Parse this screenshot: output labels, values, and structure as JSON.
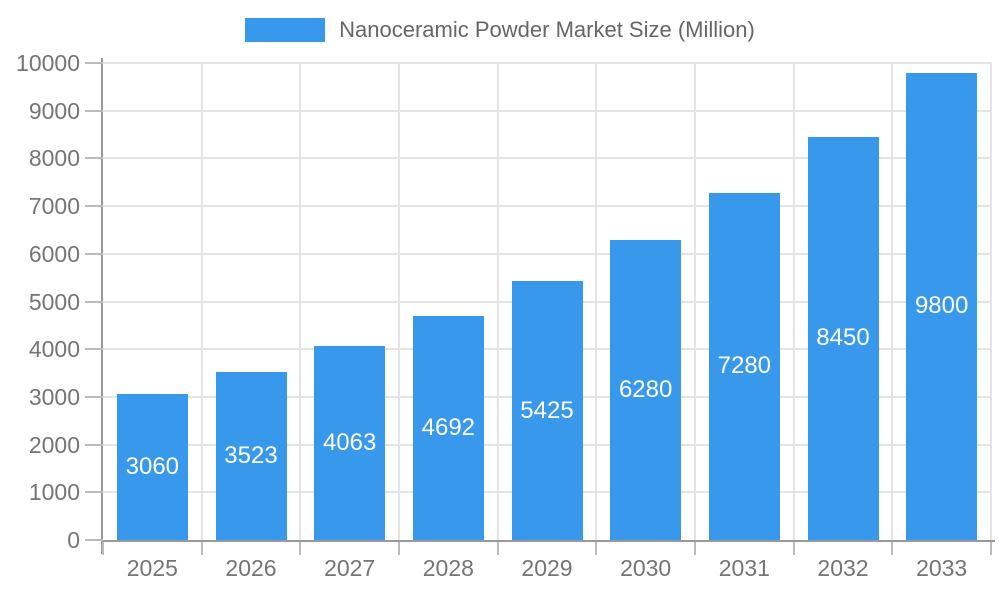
{
  "chart_data": {
    "type": "bar",
    "title": "Nanoceramic Powder Market Size (Million)",
    "categories": [
      "2025",
      "2026",
      "2027",
      "2028",
      "2029",
      "2030",
      "2031",
      "2032",
      "2033"
    ],
    "values": [
      3060,
      3523,
      4063,
      4692,
      5425,
      6280,
      7280,
      8450,
      9800
    ],
    "xlabel": "",
    "ylabel": "",
    "ylim": [
      0,
      10000
    ],
    "ytick_step": 1000,
    "ytick_labels": [
      "0",
      "1000",
      "2000",
      "3000",
      "4000",
      "5000",
      "6000",
      "7000",
      "8000",
      "9000",
      "10000"
    ],
    "grid": true,
    "legend_position": "top-center",
    "bar_value_labels_visible": true
  },
  "style": {
    "bar_color": "#3898EC",
    "grid_color": "#E4E4E4",
    "axis_color": "#999999",
    "tick_color": "#BBBBBB",
    "axis_label_color": "#757575",
    "legend_text_color": "#666666",
    "bar_label_color": "#FFFFFF",
    "background": "#FFFFFF"
  }
}
